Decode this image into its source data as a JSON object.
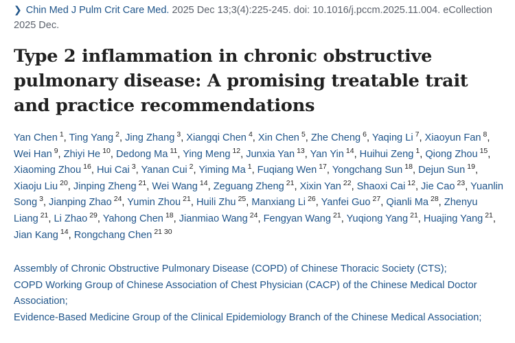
{
  "citation": {
    "journal": "Chin Med J Pulm Crit Care Med.",
    "rest": " 2025 Dec 13;3(4):225-245. doi: 10.1016/j.pccm.2025.11.004. eCollection 2025 Dec."
  },
  "title": "Type 2 inflammation in chronic obstructive pulmonary disease: A promising treatable trait and practice recommendations",
  "authors": [
    {
      "name": "Yan Chen",
      "sup": "1"
    },
    {
      "name": "Ting Yang",
      "sup": "2"
    },
    {
      "name": "Jing Zhang",
      "sup": "3"
    },
    {
      "name": "Xiangqi Chen",
      "sup": "4"
    },
    {
      "name": "Xin Chen",
      "sup": "5"
    },
    {
      "name": "Zhe Cheng",
      "sup": "6"
    },
    {
      "name": "Yaqing Li",
      "sup": "7"
    },
    {
      "name": "Xiaoyun Fan",
      "sup": "8"
    },
    {
      "name": "Wei Han",
      "sup": "9"
    },
    {
      "name": "Zhiyi He",
      "sup": "10"
    },
    {
      "name": "Dedong Ma",
      "sup": "11"
    },
    {
      "name": "Ying Meng",
      "sup": "12"
    },
    {
      "name": "Junxia Yan",
      "sup": "13"
    },
    {
      "name": "Yan Yin",
      "sup": "14"
    },
    {
      "name": "Huihui Zeng",
      "sup": "1"
    },
    {
      "name": "Qiong Zhou",
      "sup": "15"
    },
    {
      "name": "Xiaoming Zhou",
      "sup": "16"
    },
    {
      "name": "Hui Cai",
      "sup": "3"
    },
    {
      "name": "Yanan Cui",
      "sup": "2"
    },
    {
      "name": "Yiming Ma",
      "sup": "1"
    },
    {
      "name": "Fuqiang Wen",
      "sup": "17"
    },
    {
      "name": "Yongchang Sun",
      "sup": "18"
    },
    {
      "name": "Dejun Sun",
      "sup": "19"
    },
    {
      "name": "Xiaoju Liu",
      "sup": "20"
    },
    {
      "name": "Jinping Zheng",
      "sup": "21"
    },
    {
      "name": "Wei Wang",
      "sup": "14"
    },
    {
      "name": "Zeguang Zheng",
      "sup": "21"
    },
    {
      "name": "Xixin Yan",
      "sup": "22"
    },
    {
      "name": "Shaoxi Cai",
      "sup": "12"
    },
    {
      "name": "Jie Cao",
      "sup": "23"
    },
    {
      "name": "Yuanlin Song",
      "sup": "3"
    },
    {
      "name": "Jianping Zhao",
      "sup": "24"
    },
    {
      "name": "Yumin Zhou",
      "sup": "21"
    },
    {
      "name": "Huili Zhu",
      "sup": "25"
    },
    {
      "name": "Manxiang Li",
      "sup": "26"
    },
    {
      "name": "Yanfei Guo",
      "sup": "27"
    },
    {
      "name": "Qianli Ma",
      "sup": "28"
    },
    {
      "name": "Zhenyu Liang",
      "sup": "21"
    },
    {
      "name": "Li Zhao",
      "sup": "29"
    },
    {
      "name": "Yahong Chen",
      "sup": "18"
    },
    {
      "name": "Jianmiao Wang",
      "sup": "24"
    },
    {
      "name": "Fengyan Wang",
      "sup": "21"
    },
    {
      "name": "Yuqiong Yang",
      "sup": "21"
    },
    {
      "name": "Huajing Yang",
      "sup": "21"
    },
    {
      "name": "Jian Kang",
      "sup": "14"
    },
    {
      "name": "Rongchang Chen",
      "sup": "21 30"
    }
  ],
  "affiliations": [
    "Assembly of Chronic Obstructive Pulmonary Disease (COPD) of Chinese Thoracic Society (CTS);",
    "COPD Working Group of Chinese Association of Chest Physician (CACP) of the Chinese Medical Doctor Association;",
    "Evidence-Based Medicine Group of the Clinical Epidemiology Branch of the Chinese Medical Association;"
  ]
}
